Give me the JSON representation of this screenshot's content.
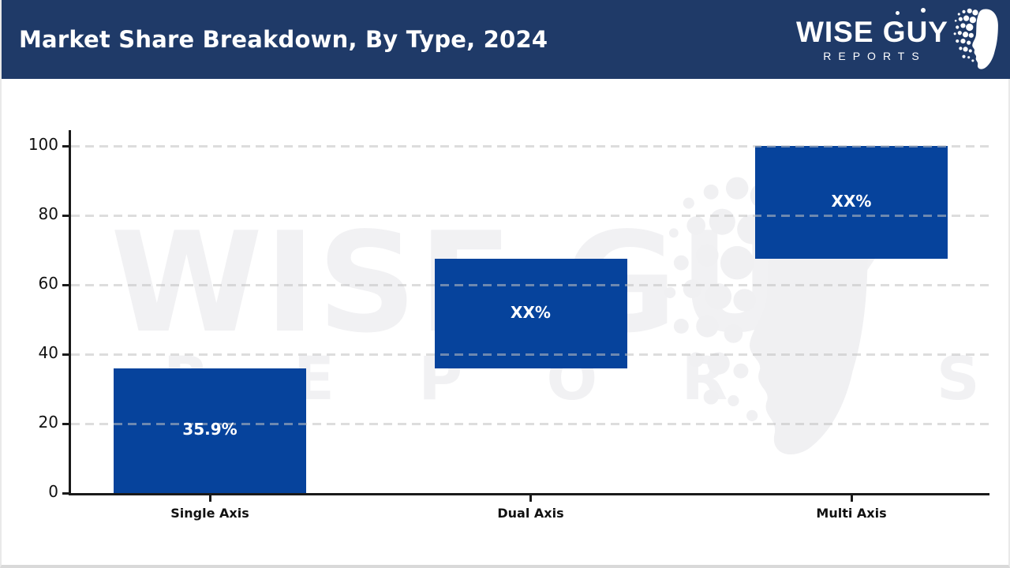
{
  "header": {
    "title": "Market Share Breakdown, By Type, 2024",
    "logo": {
      "name": "WISE GUY",
      "tagline": "REPORTS"
    }
  },
  "watermark": {
    "line1": "WISE GUY",
    "line2": "R E P O R T S"
  },
  "colors": {
    "header_bg": "#1F3A68",
    "page_bg": "#FFFFFF"
  },
  "chart_data": {
    "type": "bar",
    "subtype": "waterfall-floating-segments",
    "title": "Market Share Breakdown, By Type, 2024",
    "categories": [
      "Single Axis",
      "Dual Axis",
      "Multi Axis"
    ],
    "series": [
      {
        "name": "Market Share (%)",
        "segments": [
          {
            "category": "Single Axis",
            "from": 0,
            "to": 35.9,
            "label": "35.9%"
          },
          {
            "category": "Dual Axis",
            "from": 35.9,
            "to": 67.5,
            "label": "XX%"
          },
          {
            "category": "Multi Axis",
            "from": 67.5,
            "to": 100,
            "label": "XX%"
          }
        ]
      }
    ],
    "ylim": [
      0,
      100
    ],
    "yticks": [
      0,
      20,
      40,
      60,
      80,
      100
    ],
    "grid": "horizontal-dashed",
    "legend": "none",
    "colors": {
      "bar": "#06439C",
      "bar_label": "#FFFFFF",
      "axis": "#1A1A1A",
      "grid": "#D9D9D9"
    }
  }
}
